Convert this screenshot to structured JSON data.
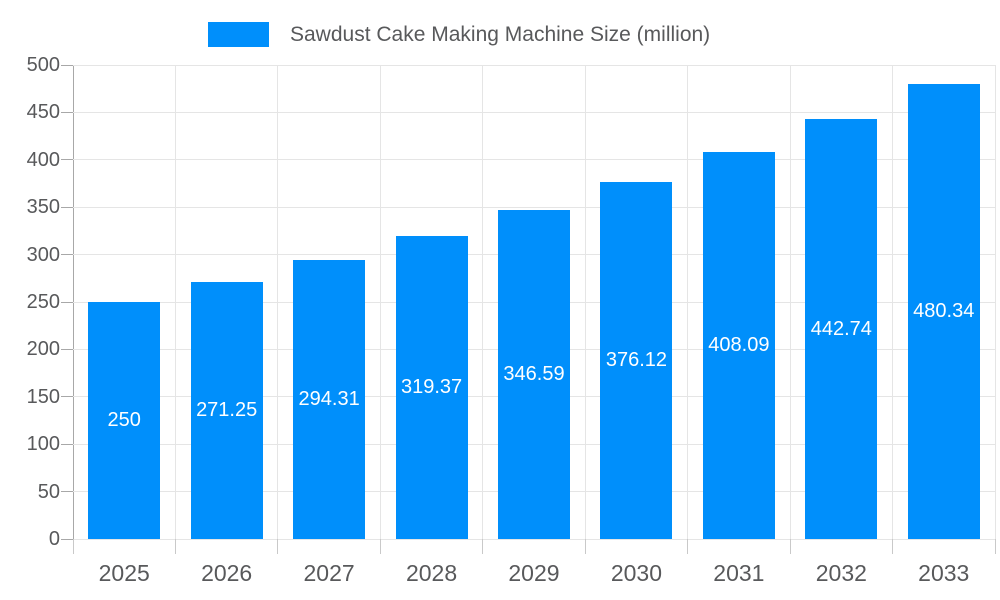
{
  "chart_data": {
    "type": "bar",
    "title": "Sawdust Cake Making Machine Size (million)",
    "categories": [
      "2025",
      "2026",
      "2027",
      "2028",
      "2029",
      "2030",
      "2031",
      "2032",
      "2033"
    ],
    "values": [
      250,
      271.25,
      294.31,
      319.37,
      346.59,
      376.12,
      408.09,
      442.74,
      480.34
    ],
    "value_labels": [
      "250",
      "271.25",
      "294.31",
      "319.37",
      "346.59",
      "376.12",
      "408.09",
      "442.74",
      "480.34"
    ],
    "legend": [
      {
        "label": "Sawdust Cake Making Machine Size (million)",
        "color": "#008FFB"
      }
    ],
    "legend_position": "top",
    "xlabel": "",
    "ylabel": "",
    "ylim": [
      0,
      500
    ],
    "ytick_step": 50,
    "yticks": [
      "0",
      "50",
      "100",
      "150",
      "200",
      "250",
      "300",
      "350",
      "400",
      "450",
      "500"
    ],
    "grid": true,
    "colors": {
      "bar": "#008FFB",
      "value_label": "#FFFFFF",
      "axis_text": "#58595B",
      "axis_line": "#A8A8A8",
      "gridline": "#E5E5E5",
      "xtick_line": "#C9C9C9"
    }
  }
}
